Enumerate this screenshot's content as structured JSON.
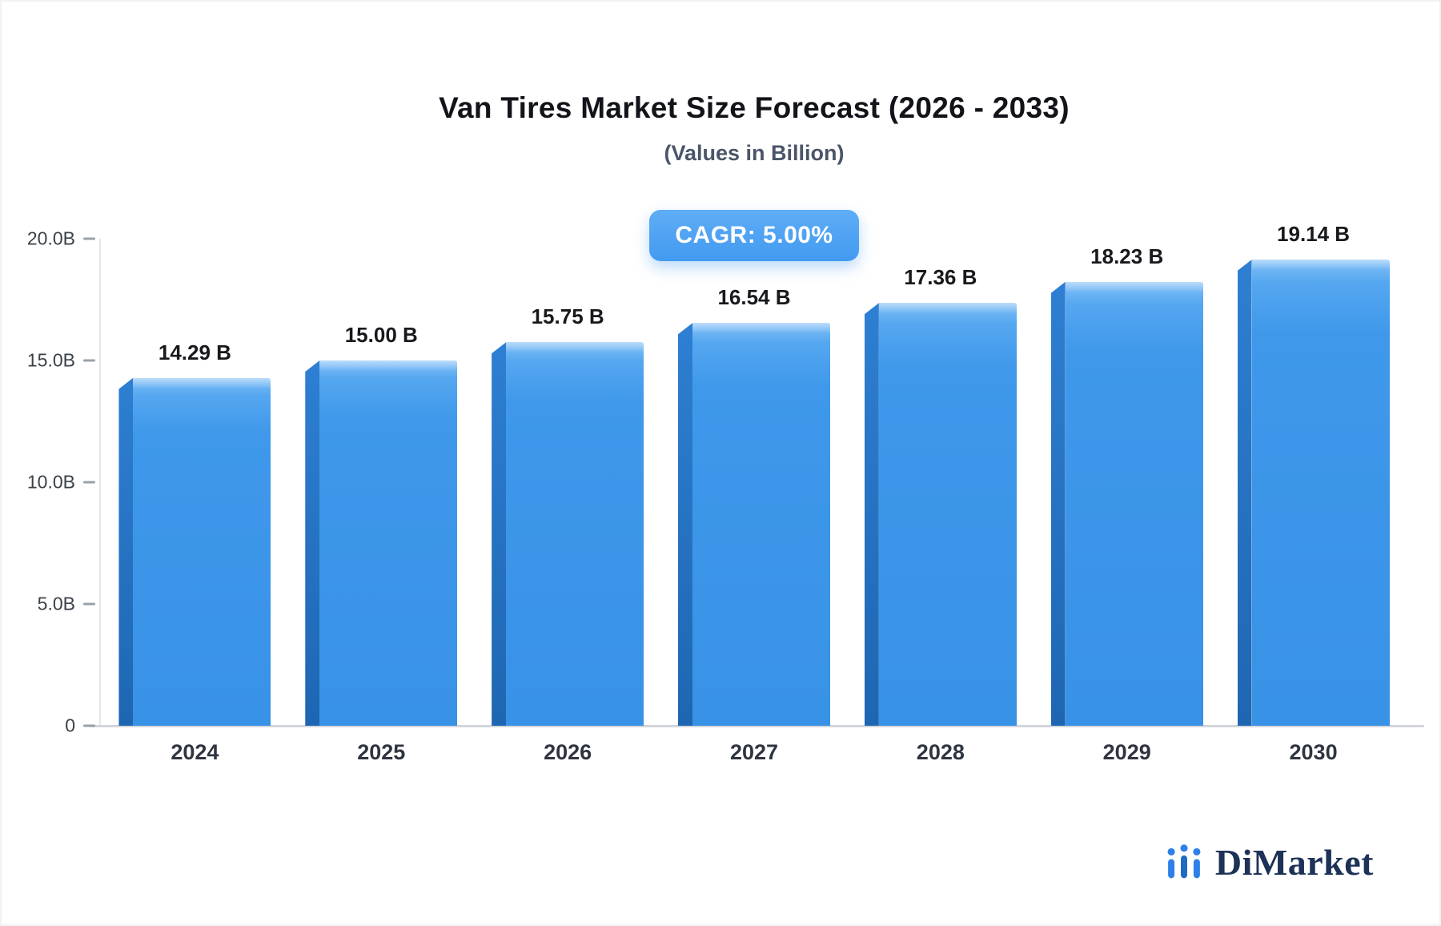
{
  "header": {
    "title": "Van Tires Market Size Forecast (2026 - 2033)",
    "subtitle": "(Values in Billion)",
    "cagr_label": "CAGR: 5.00%"
  },
  "footer": {
    "brand": "DiMarket",
    "brand_icon": "bar-chart-with-dots-icon"
  },
  "colors": {
    "accent": "#4BA0F2",
    "bar_face": "#3E97E9",
    "bar_side": "#1F6BBE",
    "badge_background": "#4BA0F2",
    "badge_text": "#FFFFFF",
    "brand_text": "#1D3256",
    "brand_icon": "#2E7FE8",
    "axis_line": "#D2D6DB"
  },
  "chart_data": {
    "type": "bar",
    "title": "Van Tires Market Size Forecast (2026 - 2033)",
    "subtitle": "(Values in Billion)",
    "annotation": "CAGR: 5.00%",
    "categories": [
      "2024",
      "2025",
      "2026",
      "2027",
      "2028",
      "2029",
      "2030"
    ],
    "values": [
      14.29,
      15.0,
      15.75,
      16.54,
      17.36,
      18.23,
      19.14
    ],
    "value_labels": [
      "14.29 B",
      "15.00 B",
      "15.75 B",
      "16.54 B",
      "17.36 B",
      "18.23 B",
      "19.14 B"
    ],
    "xlabel": "",
    "ylabel": "",
    "ylim": [
      0,
      20
    ],
    "yticks": [
      {
        "value": 0,
        "label": "0"
      },
      {
        "value": 5,
        "label": "5.0B"
      },
      {
        "value": 10,
        "label": "10.0B"
      },
      {
        "value": 15,
        "label": "15.0B"
      },
      {
        "value": 20,
        "label": "20.0B"
      }
    ],
    "grid": false,
    "legend": false
  }
}
